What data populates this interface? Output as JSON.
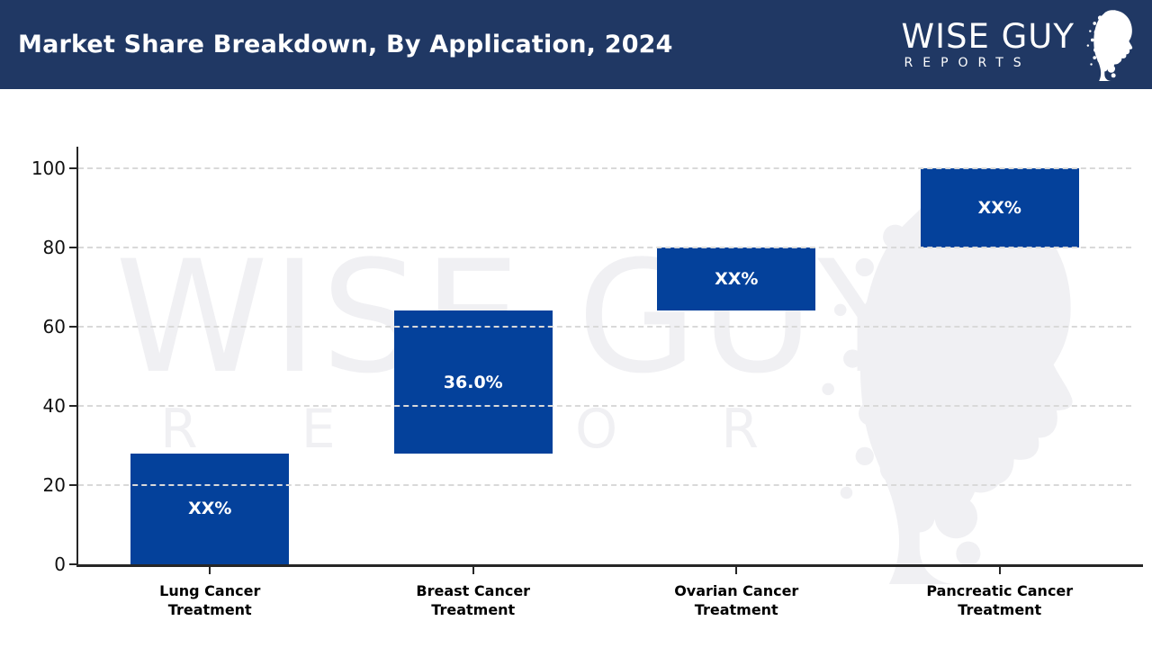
{
  "header": {
    "title": "Market Share Breakdown, By Application, 2024",
    "logo": {
      "name_top": "WISE GUY",
      "name_bottom": "REPORTS"
    }
  },
  "watermark": {
    "text_top": "WISE GUY",
    "text_bottom": "R E P O R T S"
  },
  "colors": {
    "header_bg": "#203864",
    "bar": "#04419b",
    "bar_label": "#ffffff",
    "grid": "#d9d9d9",
    "axis": "#262626",
    "watermark": "#f0f0f3"
  },
  "chart_data": {
    "type": "bar",
    "variant": "floating-segment-waterfall",
    "title": "Market Share Breakdown, By Application, 2024",
    "categories": [
      [
        "Lung Cancer",
        "Treatment"
      ],
      [
        "Breast Cancer",
        "Treatment"
      ],
      [
        "Ovarian Cancer",
        "Treatment"
      ],
      [
        "Pancreatic Cancer",
        "Treatment"
      ]
    ],
    "bars": [
      {
        "start": 0,
        "end": 28,
        "label": "XX%"
      },
      {
        "start": 28,
        "end": 64,
        "label": "36.0%",
        "value": 36.0
      },
      {
        "start": 64,
        "end": 80,
        "label": "XX%"
      },
      {
        "start": 80,
        "end": 100,
        "label": "XX%"
      }
    ],
    "y_ticks": [
      0,
      20,
      40,
      60,
      80,
      100
    ],
    "ylim": [
      0,
      100
    ],
    "xlabel": "",
    "ylabel": "",
    "grid": "horizontal-dashed",
    "legend": null
  }
}
